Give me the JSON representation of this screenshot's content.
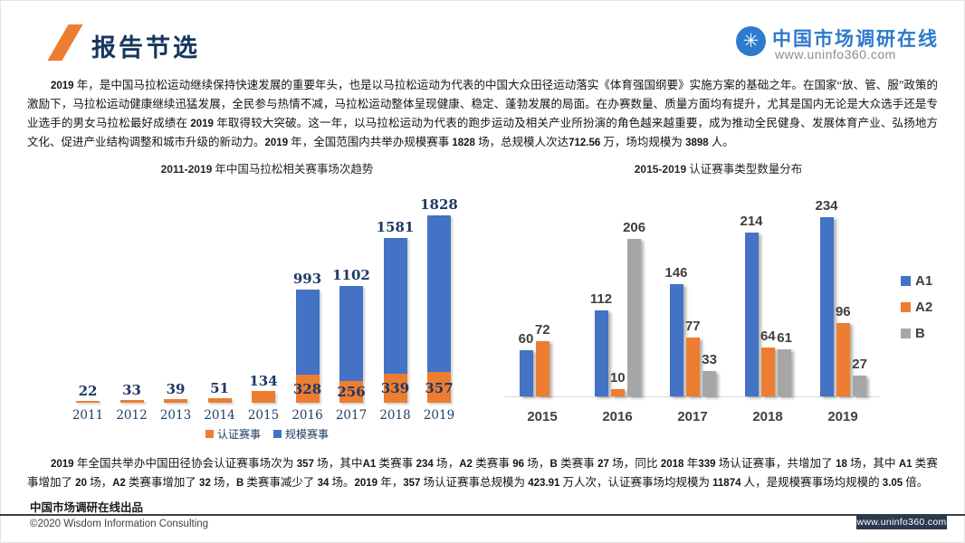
{
  "header": {
    "page_title": "报告节选",
    "brand_name": "中国市场调研在线",
    "brand_url": "www.uninfo360.com",
    "logo_glyph": "✳"
  },
  "colors": {
    "accent_orange": "#ED7D31",
    "accent_blue": "#4472C4",
    "accent_gray": "#A6A6A6",
    "navy_label": "#1F3864",
    "brand_blue": "#2E79CC",
    "footer_bar_bg": "#2B3A4D"
  },
  "intro_paragraph": [
    {
      "t": "2019",
      "b": true
    },
    {
      "t": " 年，是中国马拉松运动继续保持快速发展的重要年头，也是以马拉松运动为代表的中国大众田径运动落实《体育强国纲要》实施方案的基础之年。在国家“放、管、服”政策的激励下，马拉松运动健康继续迅猛发展，全民参与热情不减，马拉松运动整体呈现健康、稳定、蓬勃发展的局面。在办赛数量、质量方面均有提升，尤其是国内无论是大众选手还是专业选手的男女马拉松最好成绩在 ",
      "b": false
    },
    {
      "t": "2019",
      "b": true
    },
    {
      "t": " 年取得较大突破。这一年，以马拉松运动为代表的跑步运动及相关产业所扮演的角色越来越重要，成为推动全民健身、发展体育产业、弘扬地方文化、促进产业结构调整和城市升级的新动力。",
      "b": false
    },
    {
      "t": "2019",
      "b": true
    },
    {
      "t": " 年，全国范围内共举办规模赛事 ",
      "b": false
    },
    {
      "t": "1828",
      "b": true
    },
    {
      "t": " 场，总规模人次达",
      "b": false
    },
    {
      "t": "712.56",
      "b": true
    },
    {
      "t": " 万，场均规模为 ",
      "b": false
    },
    {
      "t": "3898",
      "b": true
    },
    {
      "t": " 人。",
      "b": false
    }
  ],
  "chart_data": [
    {
      "type": "bar",
      "variant": "stacked",
      "title": "2011-2019 年中国马拉松相关赛事场次趋势",
      "title_bold": "2011-2019",
      "title_rest": " 年中国马拉松相关赛事场次趋势",
      "categories": [
        "2011",
        "2012",
        "2013",
        "2014",
        "2015",
        "2016",
        "2017",
        "2018",
        "2019"
      ],
      "series": [
        {
          "name": "认证赛事",
          "color": "#ED7D31",
          "values": [
            22,
            33,
            39,
            51,
            134,
            328,
            256,
            339,
            357
          ]
        },
        {
          "name": "规模赛事",
          "color": "#4472C4",
          "values": [
            null,
            null,
            null,
            null,
            null,
            993,
            1102,
            1581,
            1828
          ]
        }
      ],
      "legend_position": "bottom",
      "grid": false,
      "ylim": [
        0,
        2200
      ]
    },
    {
      "type": "bar",
      "variant": "grouped",
      "title": "2015-2019 认证赛事类型数量分布",
      "title_bold": "2015-2019",
      "title_rest": " 认证赛事类型数量分布",
      "categories": [
        "2015",
        "2016",
        "2017",
        "2018",
        "2019"
      ],
      "series": [
        {
          "name": "A1",
          "color": "#4472C4",
          "values": [
            60,
            112,
            146,
            214,
            234
          ]
        },
        {
          "name": "A2",
          "color": "#ED7D31",
          "values": [
            72,
            10,
            77,
            64,
            96
          ]
        },
        {
          "name": "B",
          "color": "#A6A6A6",
          "values": [
            null,
            206,
            33,
            61,
            27
          ]
        }
      ],
      "legend_position": "right",
      "grid": false,
      "ylim": [
        0,
        240
      ]
    }
  ],
  "closing_paragraph": [
    {
      "t": "2019",
      "b": true
    },
    {
      "t": " 年全国共举办中国田径协会认证赛事场次为 ",
      "b": false
    },
    {
      "t": "357",
      "b": true
    },
    {
      "t": " 场，其中",
      "b": false
    },
    {
      "t": "A1",
      "b": true
    },
    {
      "t": " 类赛事 ",
      "b": false
    },
    {
      "t": "234",
      "b": true
    },
    {
      "t": " 场，",
      "b": false
    },
    {
      "t": "A2",
      "b": true
    },
    {
      "t": " 类赛事 ",
      "b": false
    },
    {
      "t": "96",
      "b": true
    },
    {
      "t": " 场，",
      "b": false
    },
    {
      "t": "B",
      "b": true
    },
    {
      "t": " 类赛事 ",
      "b": false
    },
    {
      "t": "27",
      "b": true
    },
    {
      "t": " 场，同比 ",
      "b": false
    },
    {
      "t": "2018",
      "b": true
    },
    {
      "t": " 年",
      "b": false
    },
    {
      "t": "339",
      "b": true
    },
    {
      "t": " 场认证赛事，共增加了 ",
      "b": false
    },
    {
      "t": "18",
      "b": true
    },
    {
      "t": " 场，其中 ",
      "b": false
    },
    {
      "t": "A1",
      "b": true
    },
    {
      "t": " 类赛事增加了 ",
      "b": false
    },
    {
      "t": "20",
      "b": true
    },
    {
      "t": " 场，",
      "b": false
    },
    {
      "t": "A2",
      "b": true
    },
    {
      "t": " 类赛事增加了 ",
      "b": false
    },
    {
      "t": "32",
      "b": true
    },
    {
      "t": " 场，",
      "b": false
    },
    {
      "t": "B",
      "b": true
    },
    {
      "t": " 类赛事减少了 ",
      "b": false
    },
    {
      "t": "34",
      "b": true
    },
    {
      "t": " 场。",
      "b": false
    },
    {
      "t": "2019",
      "b": true
    },
    {
      "t": " 年，",
      "b": false
    },
    {
      "t": "357",
      "b": true
    },
    {
      "t": " 场认证赛事总规模为 ",
      "b": false
    },
    {
      "t": "423.91",
      "b": true
    },
    {
      "t": " 万人次，认证赛事场均规模为 ",
      "b": false
    },
    {
      "t": "11874",
      "b": true
    },
    {
      "t": " 人，是规模赛事场均规模的 ",
      "b": false
    },
    {
      "t": "3.05",
      "b": true
    },
    {
      "t": " 倍。",
      "b": false
    }
  ],
  "footer": {
    "produced_by": "中国市场调研在线出品",
    "copyright": "©2020 Wisdom Information Consulting",
    "site_url": "www.uninfo360.com"
  }
}
